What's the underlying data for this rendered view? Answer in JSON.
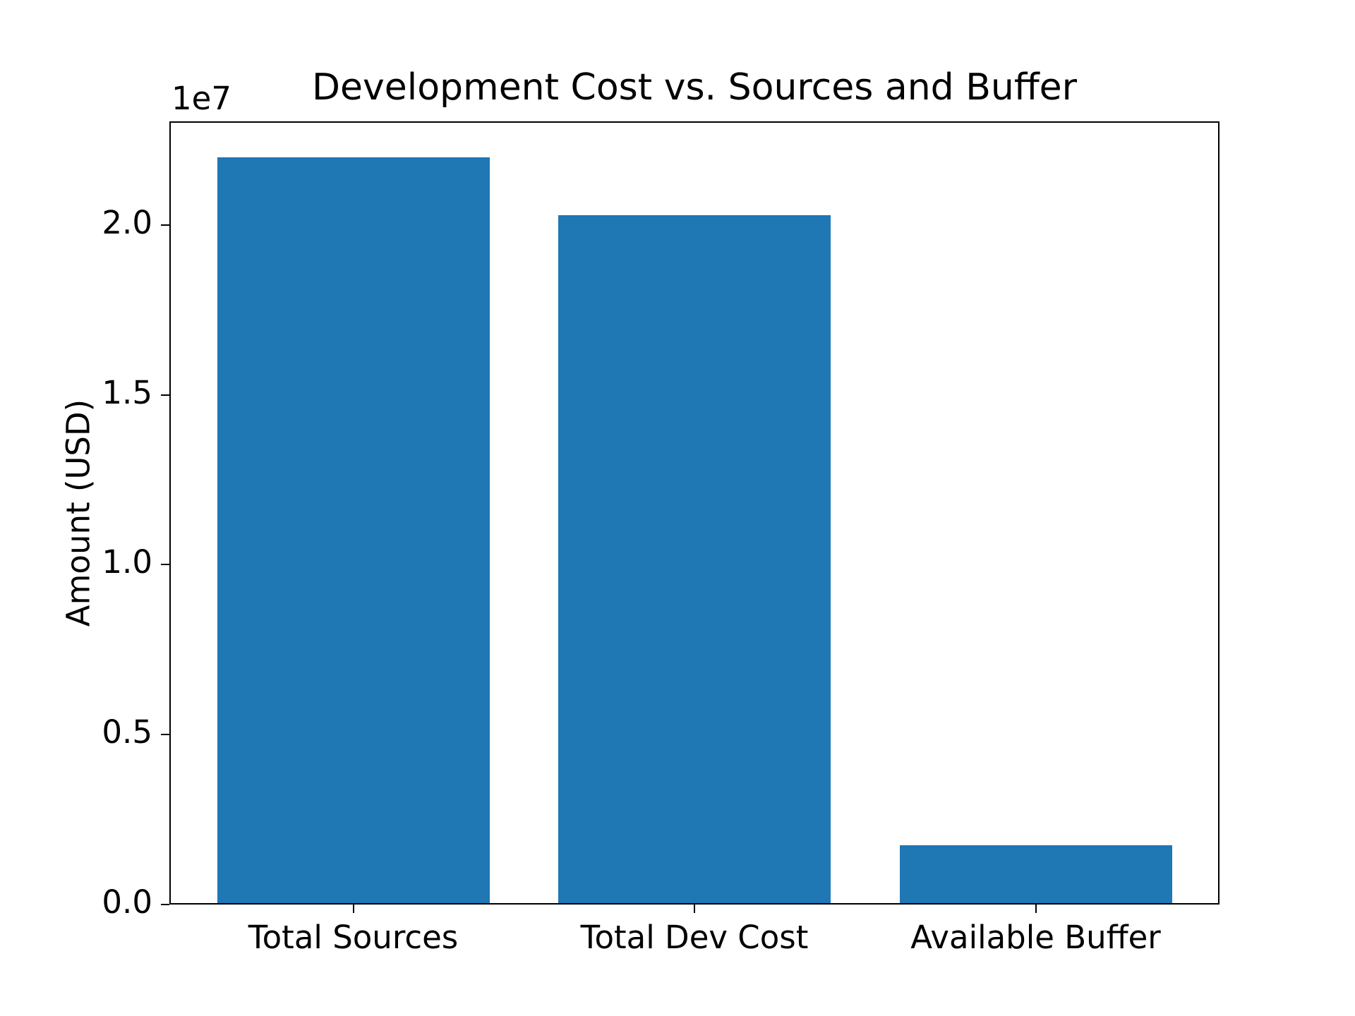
{
  "chart_data": {
    "type": "bar",
    "title": "Development Cost vs. Sources and Buffer",
    "categories": [
      "Total Sources",
      "Total Dev Cost",
      "Available Buffer"
    ],
    "values": [
      21950000,
      20250000,
      1700000
    ],
    "xlabel": "",
    "ylabel": "Amount (USD)",
    "ylim": [
      0,
      23047500
    ],
    "yticks": {
      "values": [
        0,
        5000000,
        10000000,
        15000000,
        20000000
      ],
      "labels": [
        "0.0",
        "0.5",
        "1.0",
        "1.5",
        "2.0"
      ]
    },
    "offset_text": "1e7",
    "bar_color": "#1f77b4",
    "axis_color": "#000000",
    "background_color": "#ffffff",
    "grid": false,
    "legend_position": "none"
  }
}
